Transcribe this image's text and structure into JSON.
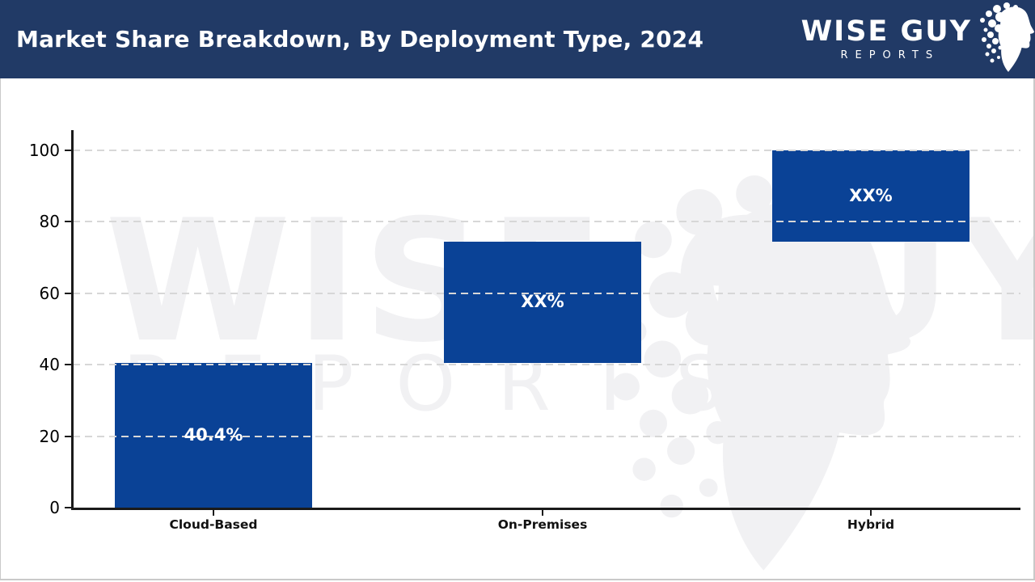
{
  "header": {
    "title": "Market Share Breakdown, By Deployment Type, 2024",
    "bg_color": "#213a66",
    "logo": {
      "line1": "WISE GUY",
      "line2": "REPORTS"
    }
  },
  "watermark": {
    "line1": "WISE GUY",
    "line2": "REPORTS"
  },
  "chart_data": {
    "type": "bar",
    "subtype": "floating-waterfall",
    "title": "Market Share Breakdown, By Deployment Type, 2024",
    "categories": [
      "Cloud-Based",
      "On-Premises",
      "Hybrid"
    ],
    "bars": [
      {
        "category": "Cloud-Based",
        "start": 0,
        "end": 40.4,
        "label": "40.4%"
      },
      {
        "category": "On-Premises",
        "start": 40.4,
        "end": 74.3,
        "label": "XX%"
      },
      {
        "category": "Hybrid",
        "start": 74.3,
        "end": 100,
        "label": "XX%"
      }
    ],
    "values_pct": [
      40.4,
      33.9,
      25.7
    ],
    "xlabel": "",
    "ylabel": "",
    "yticks": [
      0,
      20,
      40,
      60,
      80,
      100
    ],
    "ylim": [
      0,
      105
    ],
    "grid": "dashed-horizontal",
    "bar_color": "#0a4296",
    "label_color": "#ffffff",
    "grid_color": "#d7d7d7",
    "axis_color": "#1a1a1a",
    "legend": "none"
  }
}
